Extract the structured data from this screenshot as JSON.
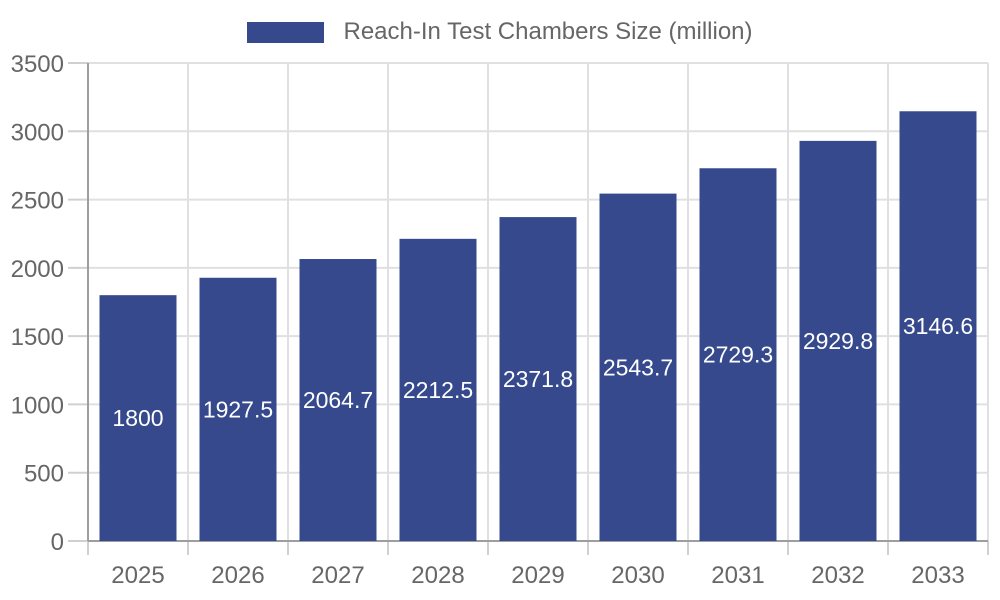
{
  "legend": {
    "label": "Reach-In Test Chambers Size (million)"
  },
  "chart_data": {
    "type": "bar",
    "title": "",
    "xlabel": "",
    "ylabel": "",
    "categories": [
      "2025",
      "2026",
      "2027",
      "2028",
      "2029",
      "2030",
      "2031",
      "2032",
      "2033"
    ],
    "series": [
      {
        "name": "Reach-In Test Chambers Size (million)",
        "values": [
          1800,
          1927.5,
          2064.7,
          2212.5,
          2371.8,
          2543.7,
          2729.3,
          2929.8,
          3146.6
        ]
      }
    ],
    "value_labels": [
      "1800",
      "1927.5",
      "2064.7",
      "2212.5",
      "2371.8",
      "2543.7",
      "2729.3",
      "2929.8",
      "3146.6"
    ],
    "ylim": [
      0,
      3500
    ],
    "yticks": [
      0,
      500,
      1000,
      1500,
      2000,
      2500,
      3000,
      3500
    ],
    "grid": true,
    "legend_position": "top",
    "colors": {
      "bar": "#36498C",
      "grid": "#E0E0E0",
      "tick": "#D0D0D0",
      "axis_line": "#9E9E9E",
      "axis_text": "#666666",
      "value_label": "#FFFFFF"
    }
  }
}
